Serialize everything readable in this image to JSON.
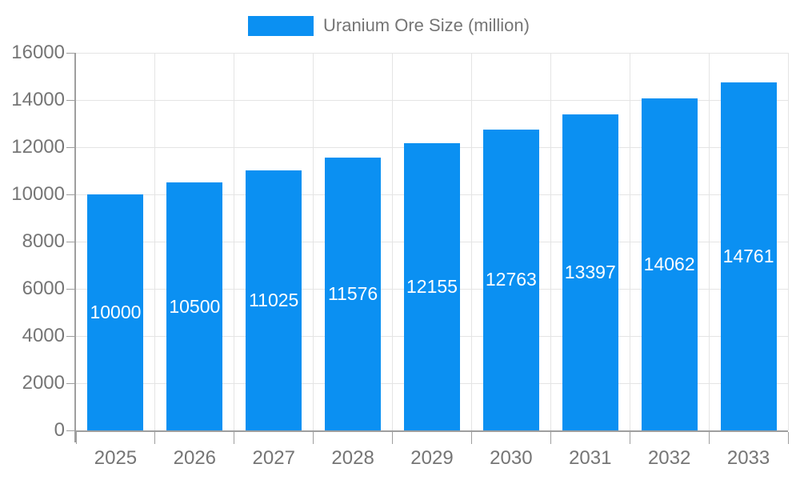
{
  "chart_data": {
    "type": "bar",
    "title": "",
    "legend": {
      "label": "Uranium Ore Size (million)",
      "position": "top-center"
    },
    "categories": [
      "2025",
      "2026",
      "2027",
      "2028",
      "2029",
      "2030",
      "2031",
      "2032",
      "2033"
    ],
    "series": [
      {
        "name": "Uranium Ore Size (million)",
        "values": [
          10000,
          10500,
          11025,
          11576,
          12155,
          12763,
          13397,
          14062,
          14761
        ]
      }
    ],
    "value_labels_inside_bars": true,
    "xlabel": "",
    "ylabel": "",
    "ylim": [
      0,
      16000
    ],
    "yticks": [
      0,
      2000,
      4000,
      6000,
      8000,
      10000,
      12000,
      14000,
      16000
    ],
    "grid": true,
    "colors": {
      "bar": "#0b90f2",
      "grid": "#e4e4e4",
      "axis": "#9e9e9e",
      "tick_text": "#757575",
      "legend_text": "#757575",
      "value_label_text": "#ffffff",
      "background": "#ffffff"
    }
  }
}
